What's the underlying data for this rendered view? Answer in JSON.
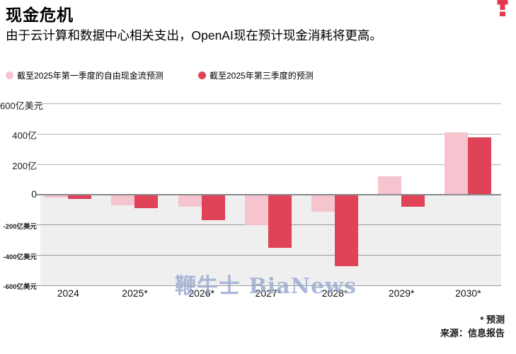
{
  "header": {
    "title": "现金危机",
    "subtitle": "由于云计算和数据中心相关支出，OpenAI现在预计现金消耗将更高。",
    "logo_icon": "the-information-t-logo",
    "logo_color": "#e2394f"
  },
  "legend": [
    {
      "label": "截至2025年第一季度的自由现金流预测",
      "color": "#f5c4cf"
    },
    {
      "label": "截至2025年第三季度的预测",
      "color": "#e04358"
    }
  ],
  "chart_data": {
    "type": "bar",
    "title": "现金危机",
    "subtitle": "由于云计算和数据中心相关支出，OpenAI现在预计现金消耗将更高。",
    "unit": "亿美元",
    "categories": [
      "2024",
      "2025*",
      "2026*",
      "2027*",
      "2028*",
      "2029*",
      "2030*"
    ],
    "series": [
      {
        "name": "截至2025年第一季度的自由现金流预测",
        "color": "#f5c4cf",
        "values": [
          -20,
          -70,
          -80,
          -200,
          -110,
          120,
          410
        ]
      },
      {
        "name": "截至2025年第三季度的预测",
        "color": "#e04358",
        "values": [
          -30,
          -90,
          -170,
          -350,
          -470,
          -80,
          380
        ]
      }
    ],
    "ylim": [
      -600,
      600
    ],
    "y_ticks": [
      {
        "value": 600,
        "label": "600亿美元"
      },
      {
        "value": 400,
        "label": "400亿"
      },
      {
        "value": 200,
        "label": "200亿"
      },
      {
        "value": 0,
        "label": "0"
      },
      {
        "value": -200,
        "label": "-200亿美元"
      },
      {
        "value": -400,
        "label": "-400亿美元"
      },
      {
        "value": -600,
        "label": "-600亿美元"
      }
    ],
    "grid": true,
    "legend_position": "top-left",
    "negative_region_background": "#efefef"
  },
  "watermark": "鞭牛士 BiaNews",
  "footer": {
    "footnote": "* 预测",
    "source": "来源：信息报告"
  }
}
